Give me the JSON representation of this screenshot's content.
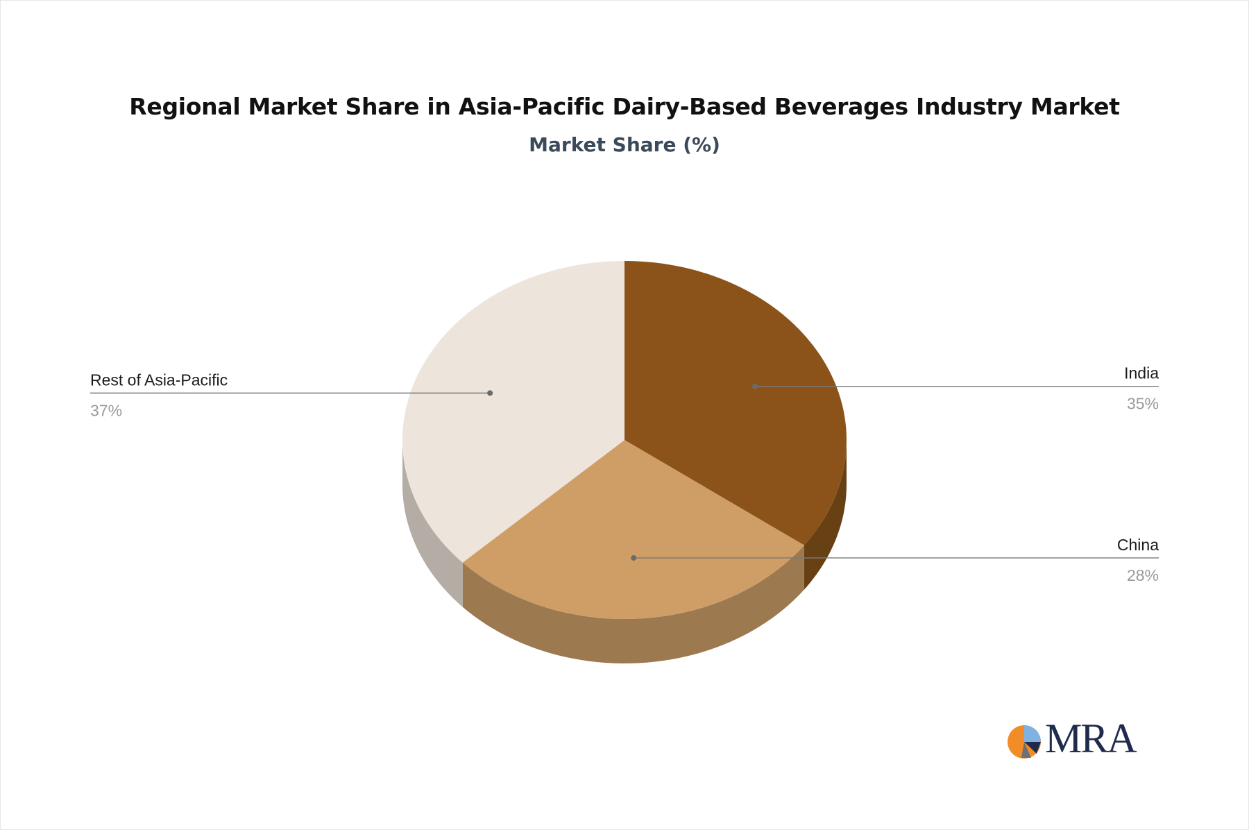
{
  "title": "Regional Market Share in Asia-Pacific Dairy-Based Beverages Industry Market",
  "subtitle": "Market Share (%)",
  "chart_data": {
    "type": "pie",
    "style": "3d",
    "title": "Regional Market Share in Asia-Pacific Dairy-Based Beverages Industry Market",
    "subtitle": "Market Share (%)",
    "unit": "%",
    "slices": [
      {
        "label": "India",
        "value": 35,
        "value_label": "35%",
        "color": "#8b5319",
        "side_color": "#674014"
      },
      {
        "label": "China",
        "value": 28,
        "value_label": "28%",
        "color": "#cf9e66",
        "side_color": "#9c794f"
      },
      {
        "label": "Rest of Asia-Pacific",
        "value": 37,
        "value_label": "37%",
        "color": "#ede5dc",
        "side_color": "#b3ada6"
      }
    ],
    "start": "12 o'clock",
    "direction": "clockwise",
    "legend": "none",
    "label_style": "leader lines with category and percentage"
  },
  "logo": {
    "text": "MRA",
    "colors": [
      "#f28c28",
      "#7fb2e0",
      "#1f2a4d"
    ]
  }
}
